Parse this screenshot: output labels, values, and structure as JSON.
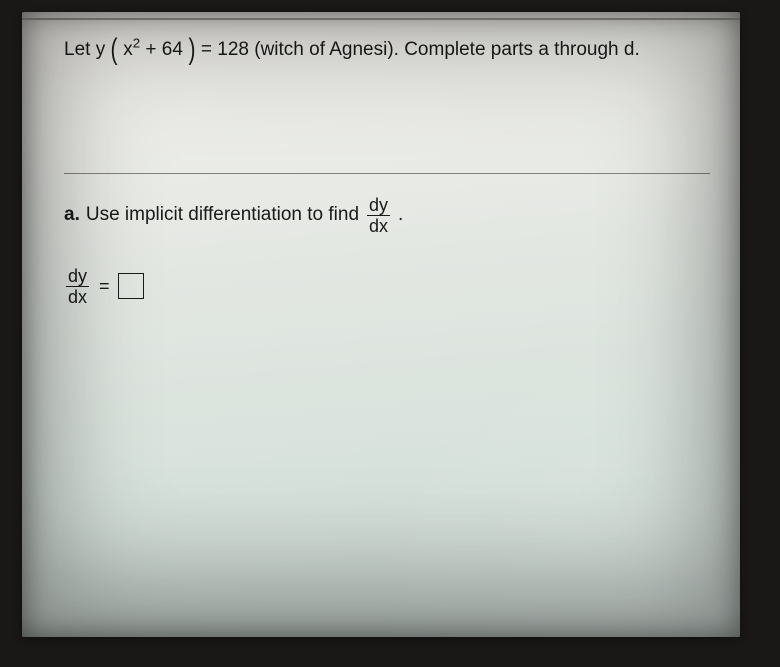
{
  "problem": {
    "prefix": "Let y",
    "lparen": "(",
    "term_x": "x",
    "exponent": "2",
    "plus_const": " + 64",
    "rparen": ")",
    "equals_rhs": " = 128 (witch of Agnesi). Complete parts a through d."
  },
  "part_a": {
    "label": "a.",
    "text_before_frac": " Use implicit differentiation to find ",
    "frac_num": "dy",
    "frac_den": "dx",
    "period": "."
  },
  "answer": {
    "frac_num": "dy",
    "frac_den": "dx",
    "equals": "="
  },
  "style": {
    "text_color": "#1a1a1a",
    "background_top": "#f4f2ee",
    "background_bottom": "#d0dbd5",
    "divider_color": "#7f837e",
    "font_size_body": 19,
    "font_family": "Arial"
  }
}
